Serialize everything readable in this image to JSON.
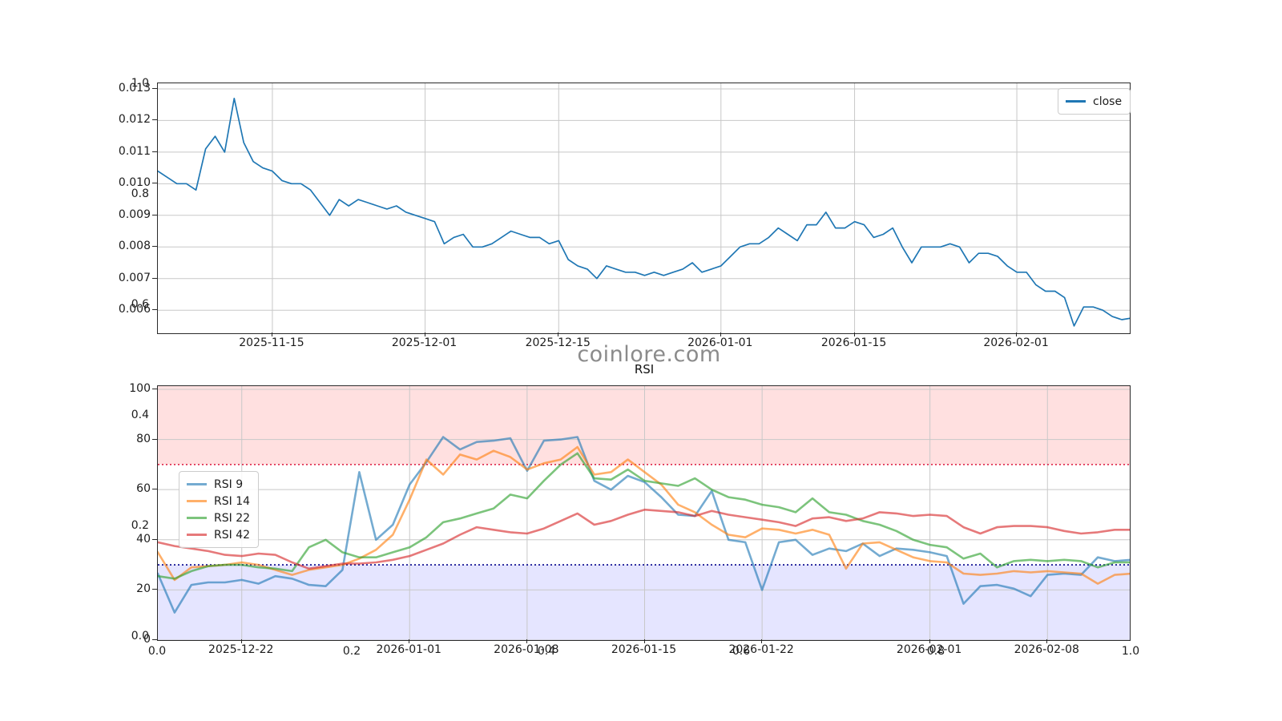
{
  "watermark": "coinlore.com",
  "colors": {
    "close": "#1f77b4",
    "rsi_line_opacity": 0.62,
    "series": [
      "#1f77b4",
      "#ff7f0e",
      "#2ca02c",
      "#d62728"
    ],
    "overbought_line": "#dc143c",
    "oversold_line": "#00008b",
    "overbought_band": "rgba(255,0,0,0.12)",
    "oversold_band": "rgba(0,0,255,0.10)",
    "grid": "#c8c8c8",
    "watermark_color": "#8b8b8b"
  },
  "overlay_axis": {
    "xticks": [
      "0.0",
      "0.2",
      "0.4",
      "0.6",
      "0.8",
      "1.0"
    ],
    "yticks": [
      "1.0",
      "0.8",
      "0.6",
      "0.4",
      "0.2",
      "0.0"
    ]
  },
  "chart_data": [
    {
      "type": "line",
      "title": "",
      "legend": [
        "close"
      ],
      "legend_position": "upper right",
      "x_start": "2025-11-03",
      "x_end": "2026-02-13",
      "x_step_days": 1,
      "xtick_labels": [
        "2025-11-15",
        "2025-12-01",
        "2025-12-15",
        "2026-01-01",
        "2026-01-15",
        "2026-02-01"
      ],
      "ytick_labels": [
        "0.013",
        "0.012",
        "0.011",
        "0.010",
        "0.009",
        "0.008",
        "0.007",
        "0.006"
      ],
      "ylim": [
        0.00527,
        0.013176
      ],
      "grid": true,
      "series": [
        {
          "name": "close",
          "values": [
            0.0104,
            0.0102,
            0.01,
            0.01,
            0.0098,
            0.0111,
            0.0115,
            0.011,
            0.0127,
            0.0113,
            0.0107,
            0.0105,
            0.0104,
            0.0101,
            0.01,
            0.01,
            0.0098,
            0.0094,
            0.009,
            0.0095,
            0.0093,
            0.0095,
            0.0094,
            0.0093,
            0.0092,
            0.0093,
            0.0091,
            0.009,
            0.0089,
            0.0088,
            0.0081,
            0.0083,
            0.0084,
            0.008,
            0.008,
            0.0081,
            0.0083,
            0.0085,
            0.0084,
            0.0083,
            0.0083,
            0.0081,
            0.0082,
            0.0076,
            0.0074,
            0.0073,
            0.007,
            0.0074,
            0.0073,
            0.0072,
            0.0072,
            0.0071,
            0.0072,
            0.0071,
            0.0072,
            0.0073,
            0.0075,
            0.0072,
            0.0073,
            0.0074,
            0.0077,
            0.008,
            0.0081,
            0.0081,
            0.0083,
            0.0086,
            0.0084,
            0.0082,
            0.0087,
            0.0087,
            0.0091,
            0.0086,
            0.0086,
            0.0088,
            0.0087,
            0.0083,
            0.0084,
            0.0086,
            0.008,
            0.0075,
            0.008,
            0.008,
            0.008,
            0.0081,
            0.008,
            0.0075,
            0.0078,
            0.0078,
            0.0077,
            0.0074,
            0.0072,
            0.0072,
            0.0068,
            0.0066,
            0.0066,
            0.0064,
            0.0055,
            0.0061,
            0.0061,
            0.006,
            0.0058,
            0.0057,
            0.00575
          ]
        }
      ]
    },
    {
      "type": "line",
      "title": "RSI",
      "legend": [
        "RSI 9",
        "RSI 14",
        "RSI 22",
        "RSI 42"
      ],
      "legend_position": "center left",
      "x_start": "2025-12-17",
      "x_end": "2026-02-13",
      "x_step_days": 1,
      "xtick_labels": [
        "2025-12-22",
        "2026-01-01",
        "2026-01-08",
        "2026-01-15",
        "2026-01-22",
        "2026-02-01",
        "2026-02-08"
      ],
      "ytick_labels": [
        "100",
        "80",
        "60",
        "40",
        "20",
        "0"
      ],
      "ylim": [
        0,
        101.27
      ],
      "overbought_level": 70,
      "oversold_level": 30,
      "grid": true,
      "series": [
        {
          "name": "RSI 9",
          "values": [
            26.5,
            11,
            22,
            23,
            23,
            24,
            22.5,
            25.5,
            24.5,
            22,
            21.5,
            28,
            67,
            40,
            46,
            62,
            71,
            81,
            76,
            79,
            79.5,
            80.5,
            67.5,
            79.5,
            80,
            81,
            63.5,
            60,
            65.5,
            63,
            57,
            50,
            49.5,
            59.5,
            40,
            39,
            20,
            39,
            40,
            34,
            36.5,
            35.5,
            38.5,
            33.5,
            36.5,
            36,
            35,
            33.5,
            14.5,
            21.5,
            22,
            20.5,
            17.5,
            26,
            26.5,
            26,
            33,
            31.5,
            32
          ]
        },
        {
          "name": "RSI 14",
          "values": [
            35,
            24,
            29,
            29.5,
            30,
            31,
            30,
            28,
            26,
            28,
            29,
            30,
            32.5,
            36,
            42,
            56,
            72,
            66,
            74,
            72,
            75.5,
            73,
            68,
            70.5,
            72,
            77,
            66,
            67,
            72,
            67,
            62,
            54,
            51,
            46,
            42,
            41,
            44.5,
            44,
            42.5,
            44,
            42,
            28.5,
            38.5,
            39,
            36,
            33,
            31.5,
            31,
            26.5,
            26,
            26.5,
            27.5,
            27,
            27.5,
            27,
            26.5,
            22.5,
            26,
            26.5
          ]
        },
        {
          "name": "RSI 22",
          "values": [
            25.5,
            24.5,
            27.5,
            29.5,
            30,
            30,
            29,
            28.5,
            27.5,
            37,
            40,
            35,
            33,
            33,
            35,
            37,
            41,
            47,
            48.5,
            50.5,
            52.5,
            58,
            56.5,
            63.5,
            70,
            74.5,
            64.5,
            64,
            68,
            63.5,
            62.5,
            61.5,
            64.5,
            60,
            57,
            56,
            54,
            53,
            51,
            56.5,
            51,
            50,
            47.5,
            46,
            43.5,
            40,
            38,
            37,
            32.5,
            34.5,
            29,
            31.5,
            32,
            31.5,
            32,
            31.5,
            29,
            31,
            31
          ]
        },
        {
          "name": "RSI 42",
          "values": [
            39,
            37.5,
            36.5,
            35.5,
            34,
            33.5,
            34.5,
            34,
            31,
            28.5,
            29.5,
            30.5,
            30.5,
            31,
            32,
            33.5,
            36,
            38.5,
            42,
            45,
            44,
            43,
            42.5,
            44.5,
            47.5,
            50.5,
            46,
            47.5,
            50,
            52,
            51.5,
            51,
            49.5,
            51.5,
            50,
            49,
            48,
            47,
            45.5,
            48.5,
            49,
            47.5,
            48.5,
            51,
            50.5,
            49.5,
            50,
            49.5,
            45,
            42.5,
            45,
            45.5,
            45.5,
            45,
            43.5,
            42.5,
            43,
            44,
            44
          ]
        }
      ]
    }
  ]
}
